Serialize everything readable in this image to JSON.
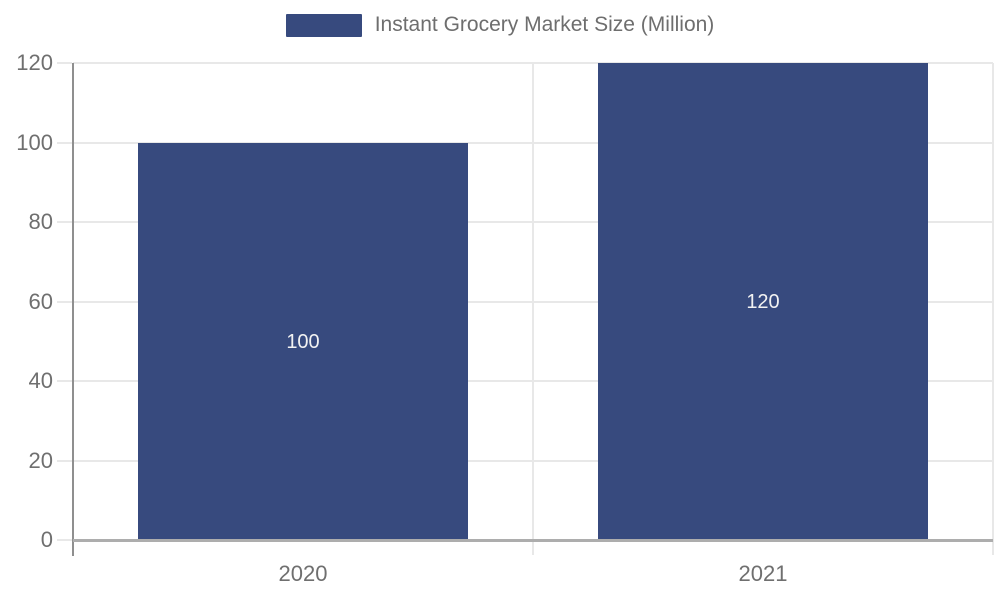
{
  "chart_data": {
    "type": "bar",
    "legend": "Instant Grocery Market Size (Million)",
    "legend_position": "top-center",
    "categories": [
      "2020",
      "2021"
    ],
    "values": [
      100,
      120
    ],
    "bar_labels": [
      "100",
      "120"
    ],
    "bar_label_position": "middle",
    "ylim": [
      0,
      120
    ],
    "yticks": [
      0,
      20,
      40,
      60,
      80,
      100,
      120
    ],
    "grid": true,
    "title": "",
    "xlabel": "",
    "ylabel": ""
  },
  "colors": {
    "bar": "#374a7e",
    "bar_value_label": "#f2f2f2",
    "legend_text": "#6e6e6e",
    "axis_text": "#6f6f6f",
    "grid_line": "#e8e8e8",
    "x_axis_line": "#adadad",
    "y_axis_line": "#8f8f8f",
    "background": "#ffffff"
  }
}
